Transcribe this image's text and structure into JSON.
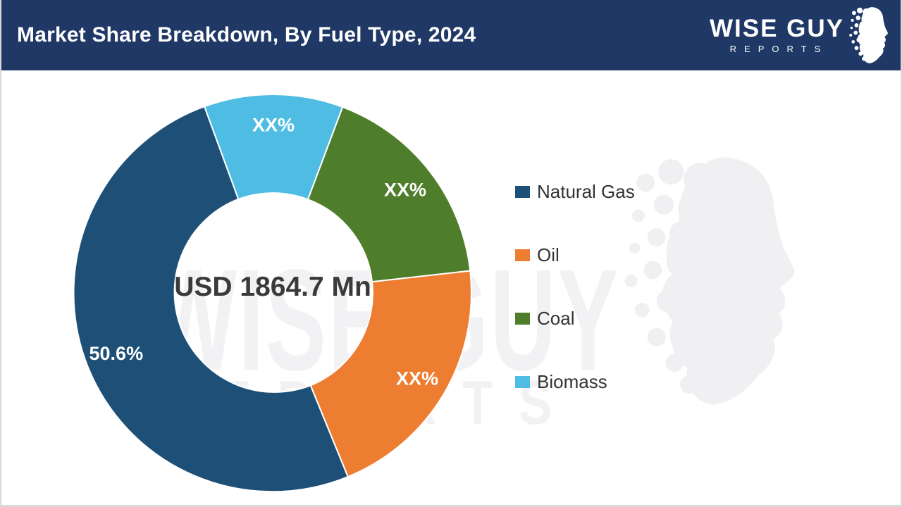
{
  "header": {
    "title": "Market Share Breakdown, By Fuel Type, 2024",
    "bg_color": "#1f3865",
    "logo": {
      "line1": "WISE GUY",
      "line2": "REPORTS",
      "icon": "head-profile-dots-icon"
    }
  },
  "watermark": {
    "line1": "WISE GUY",
    "line2": "REPORTS",
    "icon": "head-profile-dots-icon",
    "color": "#f2f2f4"
  },
  "chart_data": {
    "type": "pie",
    "variant": "donut",
    "title": "Market Share Breakdown, By Fuel Type, 2024",
    "center_label": "USD 1864.7 Mn",
    "start_angle_deg": 110.1,
    "direction": "counterclockwise",
    "inner_radius_ratio": 0.503,
    "label_radius_ratio": 0.845,
    "legend_position": "right",
    "slices": [
      {
        "name": "Natural Gas",
        "value_pct": 50.6,
        "label": "50.6%",
        "color": "#1e5077"
      },
      {
        "name": "Oil",
        "value_pct": 20.6,
        "label": "XX%",
        "color": "#ed7d31"
      },
      {
        "name": "Coal",
        "value_pct": 17.5,
        "label": "XX%",
        "color": "#4e7d2b"
      },
      {
        "name": "Biomass",
        "value_pct": 11.3,
        "label": "XX%",
        "color": "#4fbce3"
      }
    ]
  }
}
